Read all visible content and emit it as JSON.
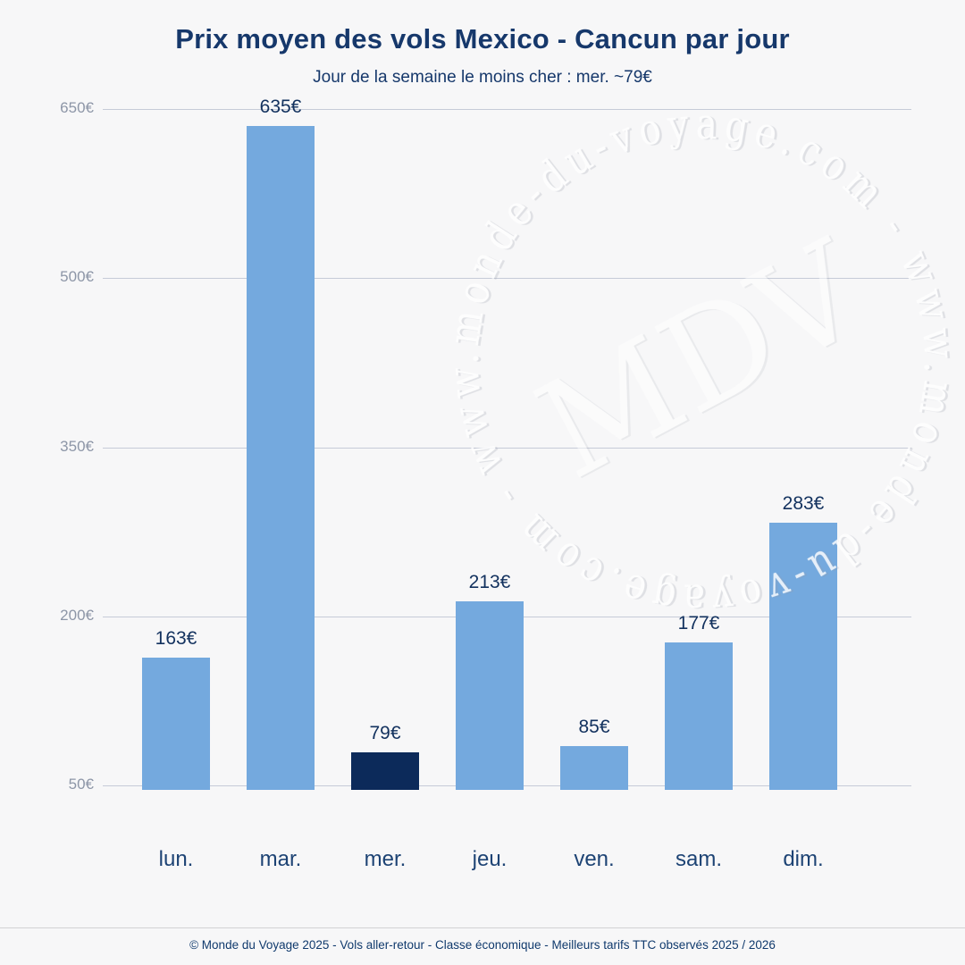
{
  "header": {
    "title": "Prix moyen des vols Mexico - Cancun par jour",
    "subtitle": "Jour de la semaine le moins cher : mer. ~79€"
  },
  "chart_data": {
    "type": "bar",
    "title": "Prix moyen des vols Mexico - Cancun par jour",
    "subtitle": "Jour de la semaine le moins cher : mer. ~79€",
    "categories": [
      "lun.",
      "mar.",
      "mer.",
      "jeu.",
      "ven.",
      "sam.",
      "dim."
    ],
    "values": [
      163,
      635,
      79,
      213,
      85,
      177,
      283
    ],
    "value_labels": [
      "163€",
      "635€",
      "79€",
      "213€",
      "85€",
      "177€",
      "283€"
    ],
    "highlight_index": 2,
    "highlight_meaning": "cheapest day",
    "ylim": [
      50,
      650
    ],
    "y_ticks": [
      650,
      500,
      350,
      200,
      50
    ],
    "y_tick_labels": [
      "650€",
      "500€",
      "350€",
      "200€",
      "50€"
    ],
    "grid": true,
    "legend_position": "none",
    "bar_color": "#74a9de",
    "highlight_color": "#0c2a5a",
    "xlabel": "",
    "ylabel": ""
  },
  "watermark": {
    "circle_text": "www.monde-du-voyage.com - www.monde-du-voyage.com -",
    "center_text": "MDV"
  },
  "footer": {
    "text": "© Monde du Voyage 2025 - Vols aller-retour - Classe économique - Meilleurs tarifs TTC observés 2025 / 2026"
  },
  "colors": {
    "background": "#f7f7f8",
    "title": "#16386b",
    "axis_tick": "#8d96a7",
    "gridline": "#c6cbd8",
    "bar": "#74a9de",
    "highlight_bar": "#0c2a5a",
    "value_label": "#12315e",
    "day_label": "#1d4374",
    "footer": "#103a6d"
  }
}
